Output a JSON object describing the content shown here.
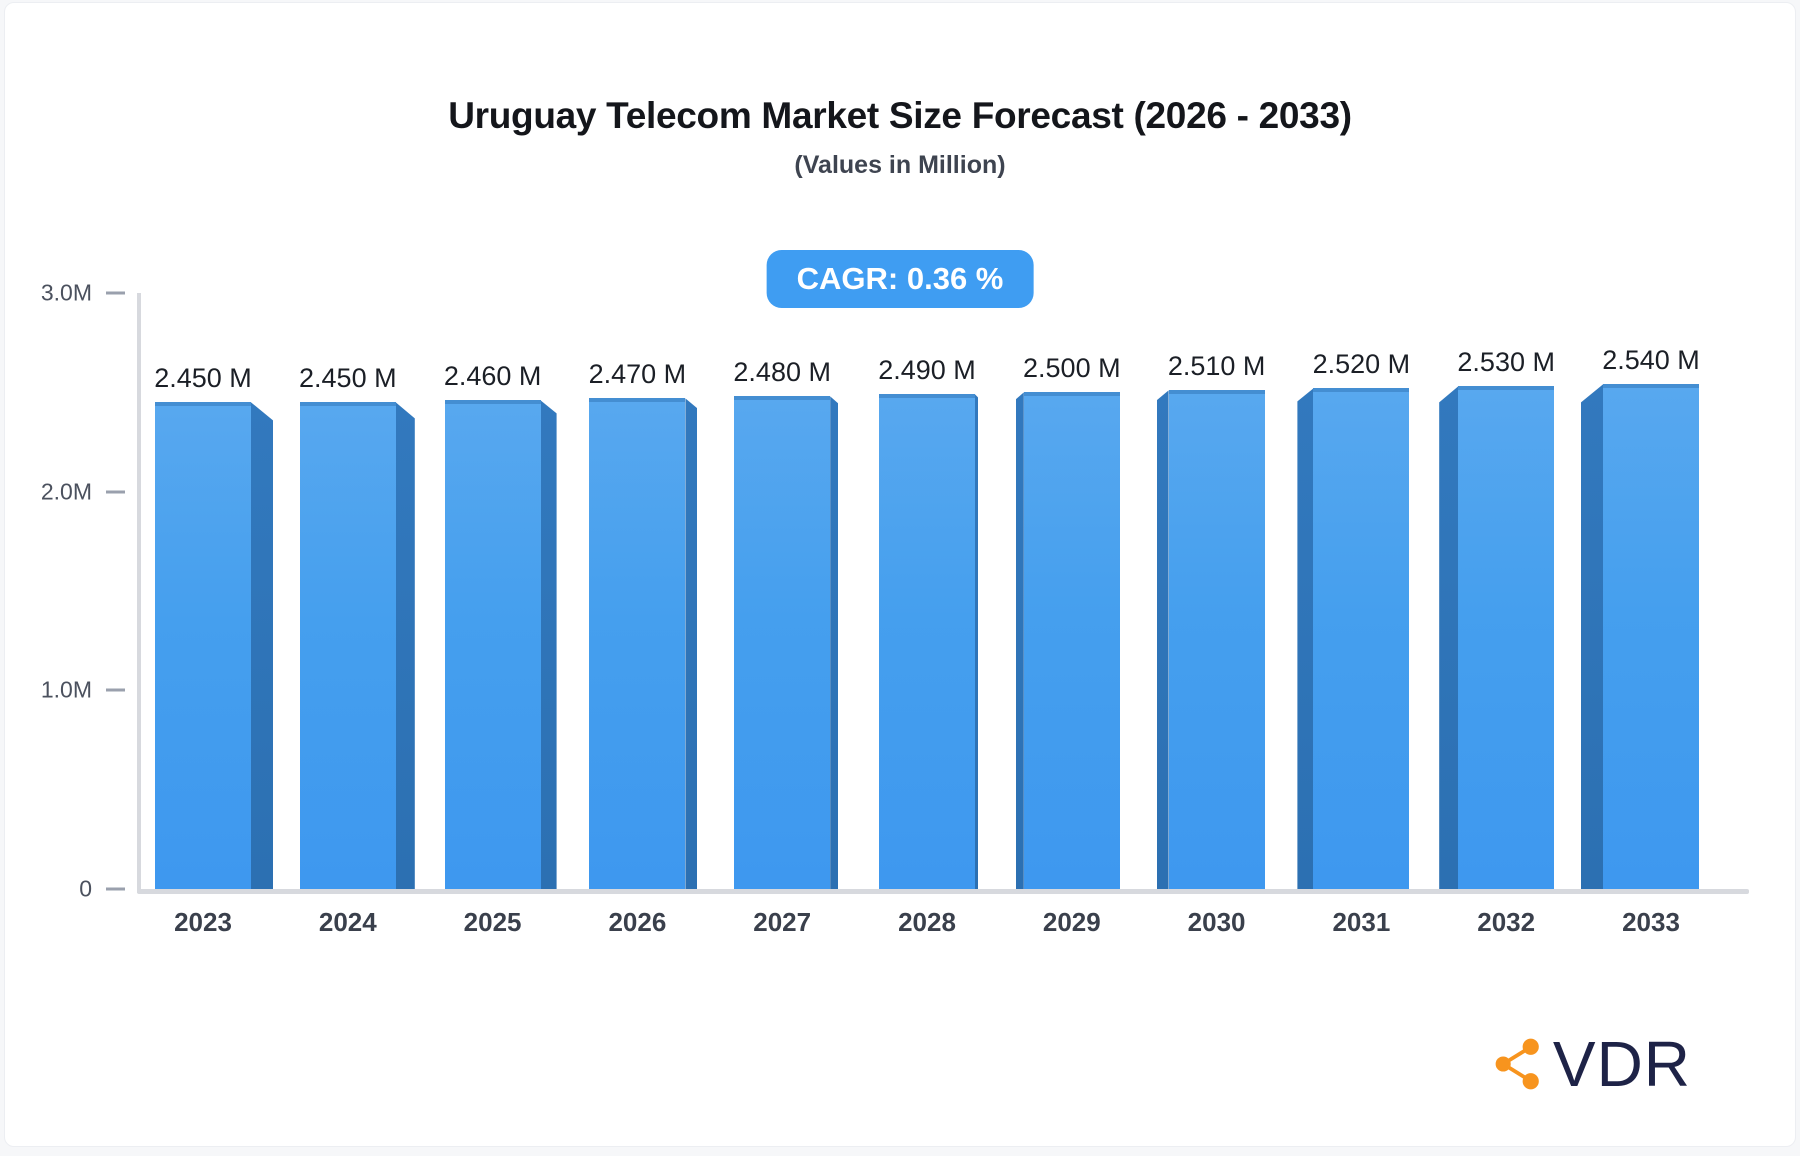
{
  "header": {
    "title": "Uruguay Telecom Market Size Forecast (2026 - 2033)",
    "subtitle": "(Values in Million)",
    "cagr_badge": "CAGR: 0.36 %"
  },
  "chart_data": {
    "type": "bar",
    "title": "Uruguay Telecom Market Size Forecast (2026 - 2033)",
    "subtitle": "(Values in Million)",
    "xlabel": "",
    "ylabel": "",
    "categories": [
      "2023",
      "2024",
      "2025",
      "2026",
      "2027",
      "2028",
      "2029",
      "2030",
      "2031",
      "2032",
      "2033"
    ],
    "values": [
      2.45,
      2.45,
      2.46,
      2.47,
      2.48,
      2.49,
      2.5,
      2.51,
      2.52,
      2.53,
      2.54
    ],
    "value_labels": [
      "2.450 M",
      "2.450 M",
      "2.460 M",
      "2.470 M",
      "2.480 M",
      "2.490 M",
      "2.500 M",
      "2.510 M",
      "2.520 M",
      "2.530 M",
      "2.540 M"
    ],
    "ylim": [
      0,
      3.0
    ],
    "yticks": [
      {
        "value": 3.0,
        "label": "3.0M"
      },
      {
        "value": 2.0,
        "label": "2.0M"
      },
      {
        "value": 1.0,
        "label": "1.0M"
      },
      {
        "value": 0,
        "label": "0"
      }
    ],
    "grid": false,
    "legend": false,
    "style": "3d-perspective-bars",
    "colors": {
      "bar_face_top": "#58a8ef",
      "bar_face_bottom": "#3e98ef",
      "bar_side": "#2e73b7",
      "axis": "#d7d9de",
      "badge_bg": "#3f9df2",
      "badge_text": "#ffffff"
    }
  },
  "logo": {
    "text": "VDR",
    "icon": "share-network-icon",
    "icon_color": "#f7941e",
    "text_color": "#1e2347"
  }
}
